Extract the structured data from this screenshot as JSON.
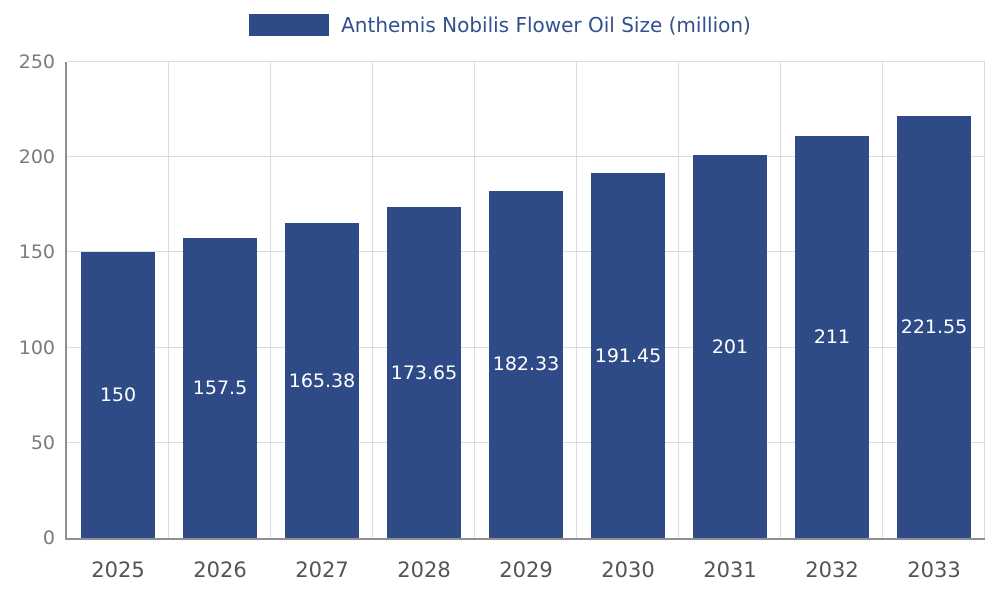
{
  "legend": {
    "label": "Anthemis Nobilis Flower Oil Size (million)"
  },
  "chart_data": {
    "type": "bar",
    "title": "Anthemis Nobilis Flower Oil Size (million)",
    "categories": [
      "2025",
      "2026",
      "2027",
      "2028",
      "2029",
      "2030",
      "2031",
      "2032",
      "2033"
    ],
    "values": [
      150,
      157.5,
      165.38,
      173.65,
      182.33,
      191.45,
      201,
      211,
      221.55
    ],
    "xlabel": "",
    "ylabel": "",
    "ylim": [
      0,
      250
    ],
    "yticks": [
      0,
      50,
      100,
      150,
      200,
      250
    ],
    "grid": true,
    "legend_position": "top",
    "bar_color": "#2e4a87",
    "value_label_color": "#ffffff",
    "legend_text_color": "#33508f"
  }
}
